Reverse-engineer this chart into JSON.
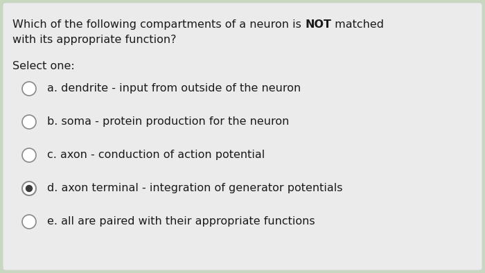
{
  "background_color": "#c8d8c0",
  "card_color": "#ebebeb",
  "question_line1": "Which of the following compartments of a neuron is ",
  "question_bold": "NOT",
  "question_line1_end": " matched",
  "question_line2": "with its appropriate function?",
  "select_label": "Select one:",
  "options": [
    {
      "label": "a. dendrite - input from outside of the neuron",
      "selected": false
    },
    {
      "label": "b. soma - protein production for the neuron",
      "selected": false
    },
    {
      "label": "c. axon - conduction of action potential",
      "selected": false
    },
    {
      "label": "d. axon terminal - integration of generator potentials",
      "selected": true
    },
    {
      "label": "e. all are paired with their appropriate functions",
      "selected": false
    }
  ],
  "text_color": "#1a1a1a",
  "circle_edge_color": "#888888",
  "circle_selected_fill": "#3a3a3a",
  "font_size_question": 11.5,
  "font_size_options": 11.5,
  "font_size_select": 11.5
}
